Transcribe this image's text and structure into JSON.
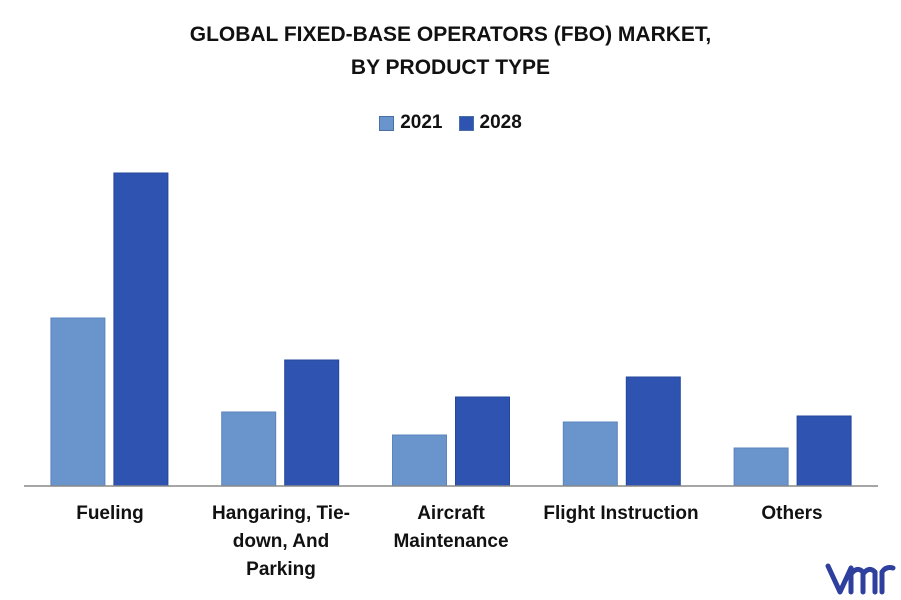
{
  "title_line1": "GLOBAL FIXED-BASE OPERATORS (FBO) MARKET,",
  "title_line2": "BY PRODUCT TYPE",
  "colors": {
    "s2021": "#6a95cc",
    "s2028": "#2e53b0",
    "axis": "#888888",
    "logo": "#2e3f9e"
  },
  "logo_name": "vmr-logo",
  "chart_data": {
    "type": "bar",
    "title": "GLOBAL FIXED-BASE OPERATORS (FBO) MARKET, BY PRODUCT TYPE",
    "categories": [
      "Fueling",
      "Hangaring, Tie-down, And Parking",
      "Aircraft Maintenance",
      "Flight Instruction",
      "Others"
    ],
    "series": [
      {
        "name": "2021",
        "values": [
          168,
          74,
          51,
          64,
          38
        ]
      },
      {
        "name": "2028",
        "values": [
          313,
          126,
          89,
          109,
          70
        ]
      }
    ],
    "ylim": [
      0,
      320
    ],
    "grid": false,
    "legend": "top-center",
    "xlabel": "",
    "ylabel": ""
  }
}
